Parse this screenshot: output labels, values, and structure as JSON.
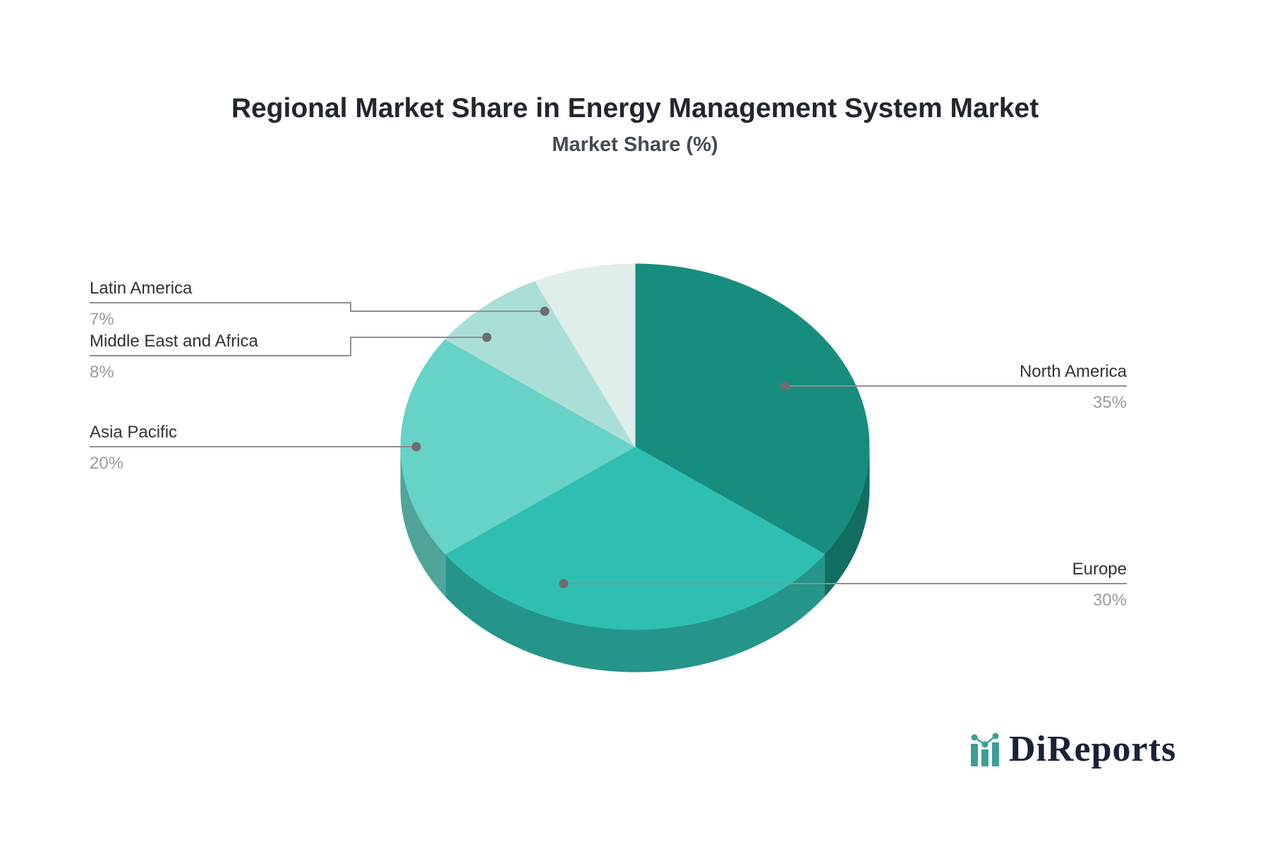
{
  "page": {
    "background": "#ffffff"
  },
  "chart_data": {
    "type": "pie",
    "title": "Regional Market Share in Energy Management System Market",
    "subtitle": "Market Share (%)",
    "unit": "%",
    "start_angle": 90,
    "direction": "clockwise",
    "effect": "3d-depth",
    "legend_position": "none",
    "label_style": "callout-leader-lines",
    "series": [
      {
        "label": "North America",
        "value": 35,
        "display": "35%",
        "color": "#178d7e"
      },
      {
        "label": "Europe",
        "value": 30,
        "display": "30%",
        "color": "#2fbfb1"
      },
      {
        "label": "Asia Pacific",
        "value": 20,
        "display": "20%",
        "color": "#67d2c6"
      },
      {
        "label": "Middle East and Africa",
        "value": 8,
        "display": "8%",
        "color": "#aadfd7"
      },
      {
        "label": "Latin America",
        "value": 7,
        "display": "7%",
        "color": "#dfeeeb"
      }
    ]
  },
  "branding": {
    "logo_text": "DiReports",
    "logo_text_color": "#1a2238",
    "logo_icon_color": "#3d9e97"
  },
  "colors": {
    "leader_line": "#8f8f8f",
    "leader_dot": "#6d6d6d",
    "name_text": "#2f3338",
    "pct_text": "#9b9b9b",
    "title": "#22262e",
    "subtitle": "#454b52"
  }
}
